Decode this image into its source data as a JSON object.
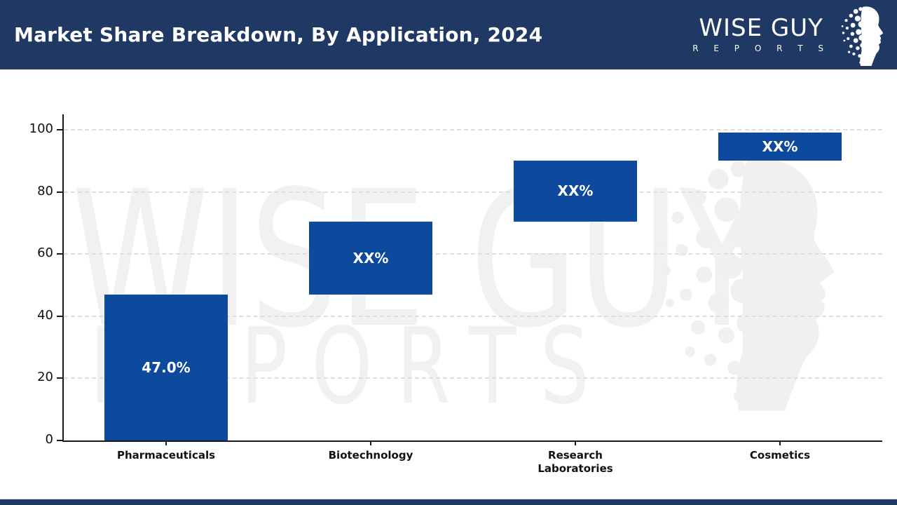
{
  "header": {
    "title": "Market Share Breakdown, By Application, 2024",
    "brand": {
      "line1": "WISE GUY",
      "line2": "R E P O R T S"
    }
  },
  "watermark": {
    "line1": "WISE GUY",
    "line2": "REPORTS"
  },
  "colors": {
    "header_bg": "#1f3864",
    "footer_bg": "#1f3864",
    "bar": "#0d4a9e",
    "bar_label": "#ffffff",
    "gridline": "#dedede",
    "axis": "#1a1a1a",
    "watermark": "#f1f1f1"
  },
  "chart_data": {
    "type": "bar",
    "subtype": "waterfall-floating-bars",
    "title": "Market Share Breakdown, By Application, 2024",
    "categories": [
      "Pharmaceuticals",
      "Biotechnology",
      "Research\nLaboratories",
      "Cosmetics"
    ],
    "segments": [
      {
        "category": "Pharmaceuticals",
        "start": 0,
        "end": 47,
        "value_label": "47.0%"
      },
      {
        "category": "Biotechnology",
        "start": 47,
        "end": 70.5,
        "value_label": "XX%"
      },
      {
        "category": "Research Laboratories",
        "start": 70.5,
        "end": 90,
        "value_label": "XX%"
      },
      {
        "category": "Cosmetics",
        "start": 90,
        "end": 99,
        "value_label": "XX%"
      }
    ],
    "xlabel": "",
    "ylabel": "",
    "ylim": [
      0,
      100
    ],
    "yticks": [
      0,
      20,
      40,
      60,
      80,
      100
    ],
    "grid": "horizontal dashed",
    "legend": "none",
    "bar_color": "#0d4a9e",
    "value_label_color": "#ffffff"
  }
}
